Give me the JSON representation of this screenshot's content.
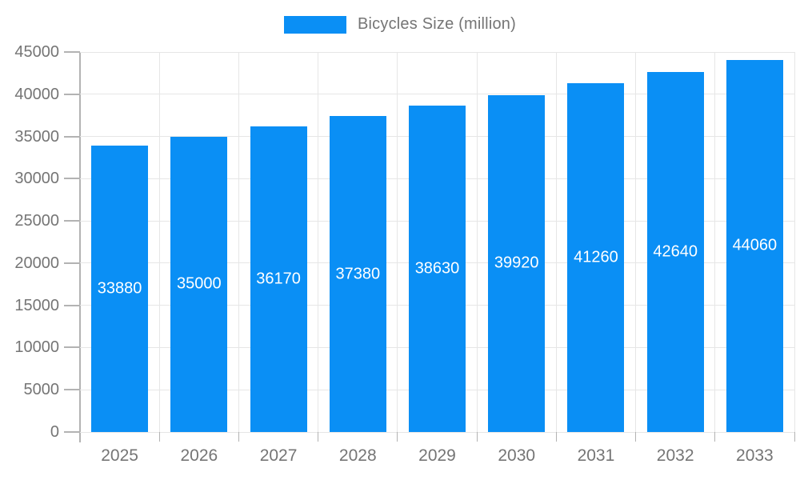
{
  "chart_data": {
    "type": "bar",
    "title": "Bicycles Size (million)",
    "legend_label": "Bicycles Size (million)",
    "legend_position": "top-center",
    "categories": [
      "2025",
      "2026",
      "2027",
      "2028",
      "2029",
      "2030",
      "2031",
      "2032",
      "2033"
    ],
    "series": [
      {
        "name": "Bicycles Size (million)",
        "values": [
          33880,
          35000,
          36170,
          37380,
          38630,
          39920,
          41260,
          42640,
          44060
        ]
      }
    ],
    "value_labels": [
      "33880",
      "35000",
      "36170",
      "37380",
      "38630",
      "39920",
      "41260",
      "42640",
      "44060"
    ],
    "xlabel": "",
    "ylabel": "",
    "ylim": [
      0,
      45000
    ],
    "y_ticks": [
      0,
      5000,
      10000,
      15000,
      20000,
      25000,
      30000,
      35000,
      40000,
      45000
    ],
    "grid": true,
    "colors": {
      "bar": "#0a8ff5",
      "grid": "#e6e6e6",
      "axis": "#b3b3b3",
      "text": "#757575",
      "bar_label": "#ffffff",
      "background": "#ffffff"
    }
  }
}
